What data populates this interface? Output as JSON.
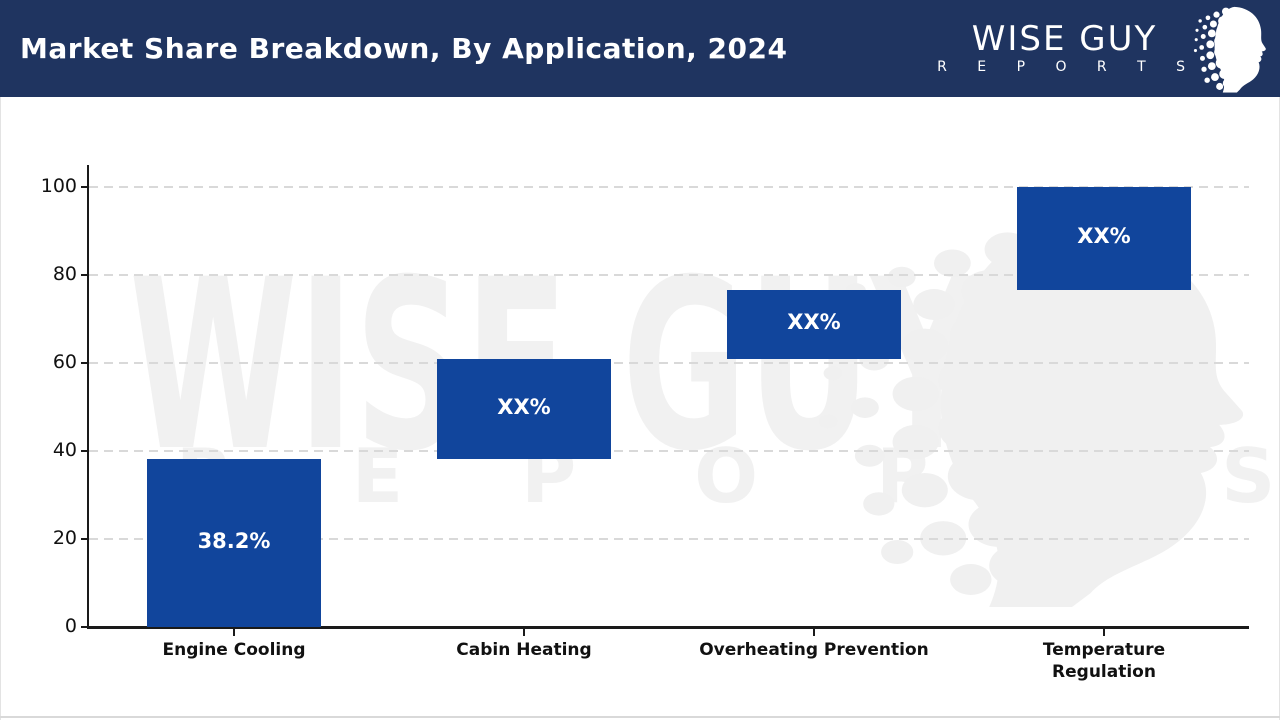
{
  "header": {
    "title": "Market Share Breakdown, By Application, 2024",
    "logo": {
      "line1": "WISE GUY",
      "line2": "R E P O R T S"
    }
  },
  "watermark": {
    "line1": "WISE GUY",
    "line2": "R E P O R T S"
  },
  "chart_data": {
    "type": "bar",
    "variant": "waterfall",
    "title": "Market Share Breakdown, By Application, 2024",
    "categories": [
      "Engine Cooling",
      "Cabin Heating",
      "Overheating Prevention",
      "Temperature Regulation"
    ],
    "segments": [
      {
        "category": "Engine Cooling",
        "start": 0,
        "end": 38.2,
        "label": "38.2%"
      },
      {
        "category": "Cabin Heating",
        "start": 38.2,
        "end": 61,
        "label": "XX%"
      },
      {
        "category": "Overheating Prevention",
        "start": 61,
        "end": 76.7,
        "label": "XX%"
      },
      {
        "category": "Temperature Regulation",
        "start": 76.7,
        "end": 100,
        "label": "XX%"
      }
    ],
    "xlabel": "",
    "ylabel": "",
    "ylim": [
      0,
      100
    ],
    "yticks": [
      0,
      20,
      40,
      60,
      80,
      100
    ],
    "grid": "horizontal-dashed",
    "legend": "none",
    "bar_color": "#11459C",
    "bar_label_color": "#ffffff"
  },
  "colors": {
    "header_bg": "#1F3460",
    "bar": "#11459C",
    "gridline": "#d9d9d9",
    "axis": "#1a1a1a",
    "watermark": "#f0f0f0"
  }
}
